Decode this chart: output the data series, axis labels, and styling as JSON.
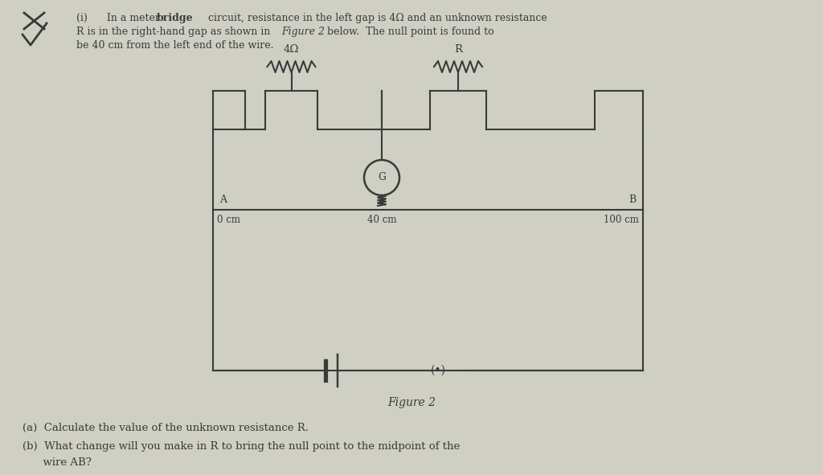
{
  "bg_color": "#d0cfc4",
  "text_color": "#2a2a2a",
  "title_line1a": "(i)      In a meter ",
  "title_line1b": "bridge",
  "title_line1c": " circuit, resistance in the left gap is 4Ω and an unknown resistance",
  "title_line2": "R is in the right-hand gap as shown in ",
  "title_line2b": "Figure 2",
  "title_line2c": " below.  The null point is found to",
  "title_line3": "be 40 cm from the left end of the wire.",
  "figure_caption": "Figure 2",
  "label_a": "A",
  "label_b": "B",
  "label_g": "G",
  "label_4ohm": "4Ω",
  "label_r": "R",
  "label_0cm": "0 cm",
  "label_40cm": "40 cm",
  "label_100cm": "100 cm",
  "question_a": "(a)  Calculate the value of the unknown resistance R.",
  "question_b": "(b)  What change will you make in R to bring the null point to the midpoint of the",
  "question_b2": "      wire AB?",
  "circuit_color": "#3a3a3a",
  "wire_lw": 1.5
}
